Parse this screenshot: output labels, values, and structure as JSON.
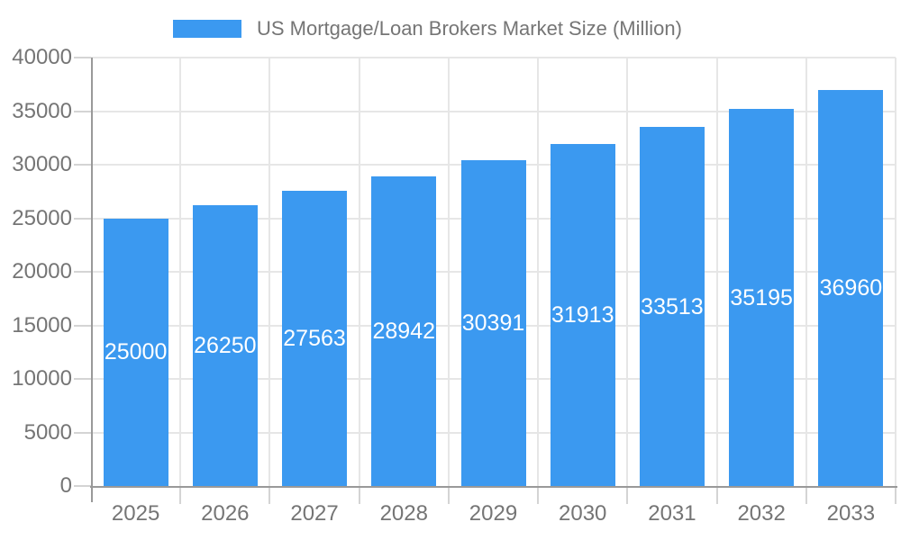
{
  "chart_data": {
    "type": "bar",
    "title": "US Mortgage/Loan Brokers Market Size (Million)",
    "categories": [
      "2025",
      "2026",
      "2027",
      "2028",
      "2029",
      "2030",
      "2031",
      "2032",
      "2033"
    ],
    "values": [
      25000,
      26250,
      27563,
      28942,
      30391,
      31913,
      33513,
      35195,
      36960
    ],
    "xlabel": "",
    "ylabel": "",
    "ylim": [
      0,
      40000
    ],
    "ytick_step": 5000,
    "ytick_labels": [
      "0",
      "5000",
      "10000",
      "15000",
      "20000",
      "25000",
      "30000",
      "35000",
      "40000"
    ],
    "grid": true,
    "legend_position": "top",
    "bar_labels_inside": true,
    "colors": {
      "bar": "#3b99f0",
      "bar_label_text": "#ffffff",
      "axis_text": "#757575",
      "axis_line": "#999999",
      "gridline": "#e6e6e6",
      "tick": "#d4d4d4",
      "background": "#ffffff"
    }
  }
}
